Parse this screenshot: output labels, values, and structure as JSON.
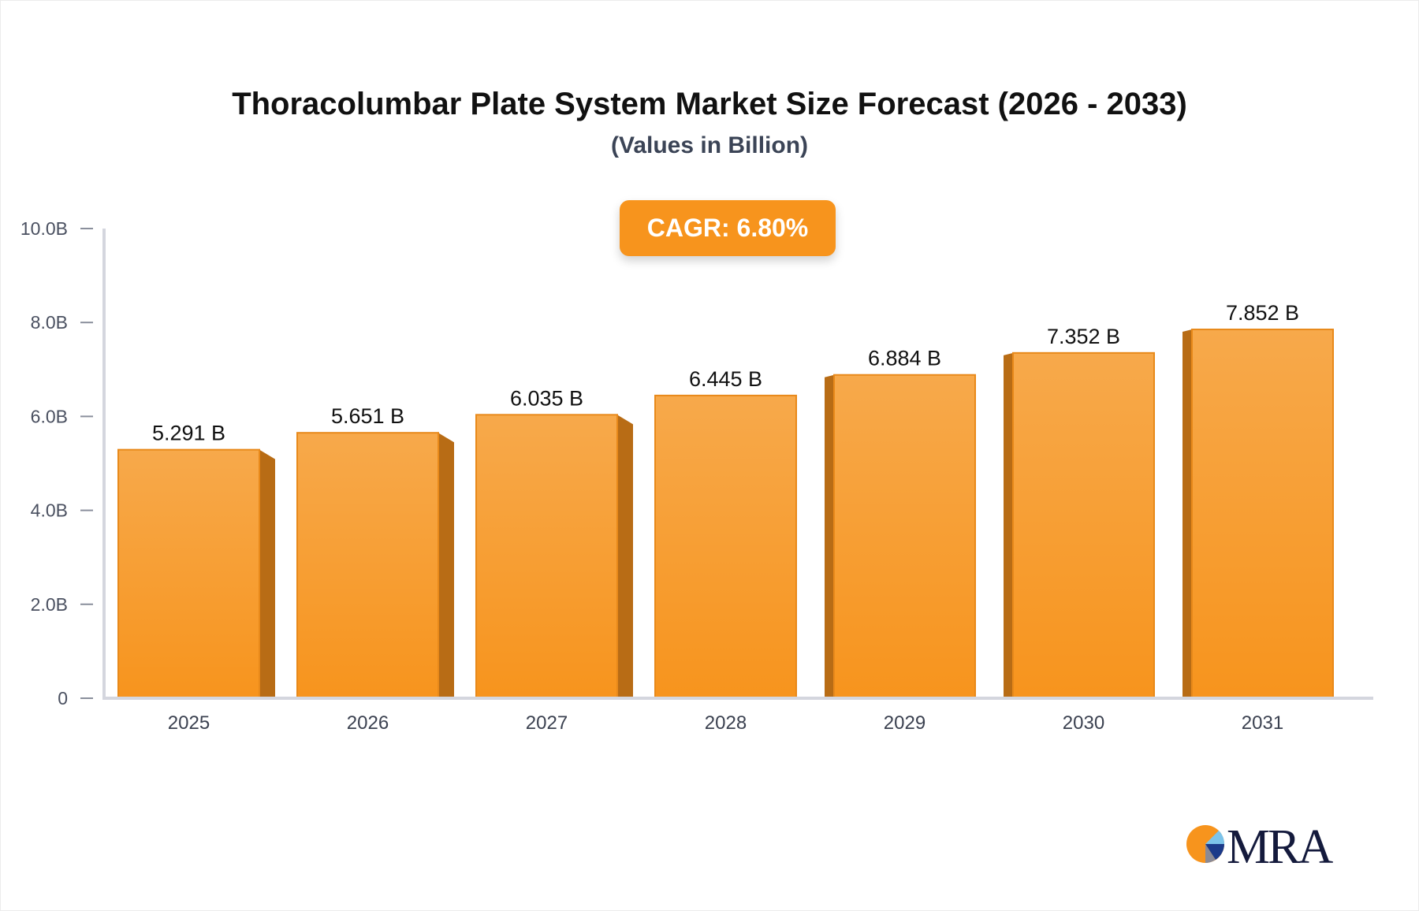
{
  "chart_data": {
    "type": "bar",
    "title": "Thoracolumbar Plate System Market Size Forecast (2026 - 2033)",
    "subtitle": "(Values in Billion)",
    "annotation": "CAGR: 6.80%",
    "categories": [
      "2025",
      "2026",
      "2027",
      "2028",
      "2029",
      "2030",
      "2031"
    ],
    "values": [
      5.291,
      5.651,
      6.035,
      6.445,
      6.884,
      7.352,
      7.852
    ],
    "data_labels": [
      "5.291 B",
      "5.651 B",
      "6.035 B",
      "6.445 B",
      "6.884 B",
      "7.352 B",
      "7.852 B"
    ],
    "yticks": [
      0,
      2,
      4,
      6,
      8,
      10
    ],
    "ytick_labels": [
      "0",
      "2.0B",
      "4.0B",
      "6.0B",
      "8.0B",
      "10.0B"
    ],
    "ylim": [
      0,
      10
    ],
    "xlabel": "",
    "ylabel": "",
    "grid": false,
    "colors": {
      "bar": "#f7941d",
      "bar_top": "#f7a94b",
      "bar_side": "#b86c15",
      "cagr_badge": "#f7941d"
    }
  },
  "logo": {
    "text": "MRA"
  }
}
